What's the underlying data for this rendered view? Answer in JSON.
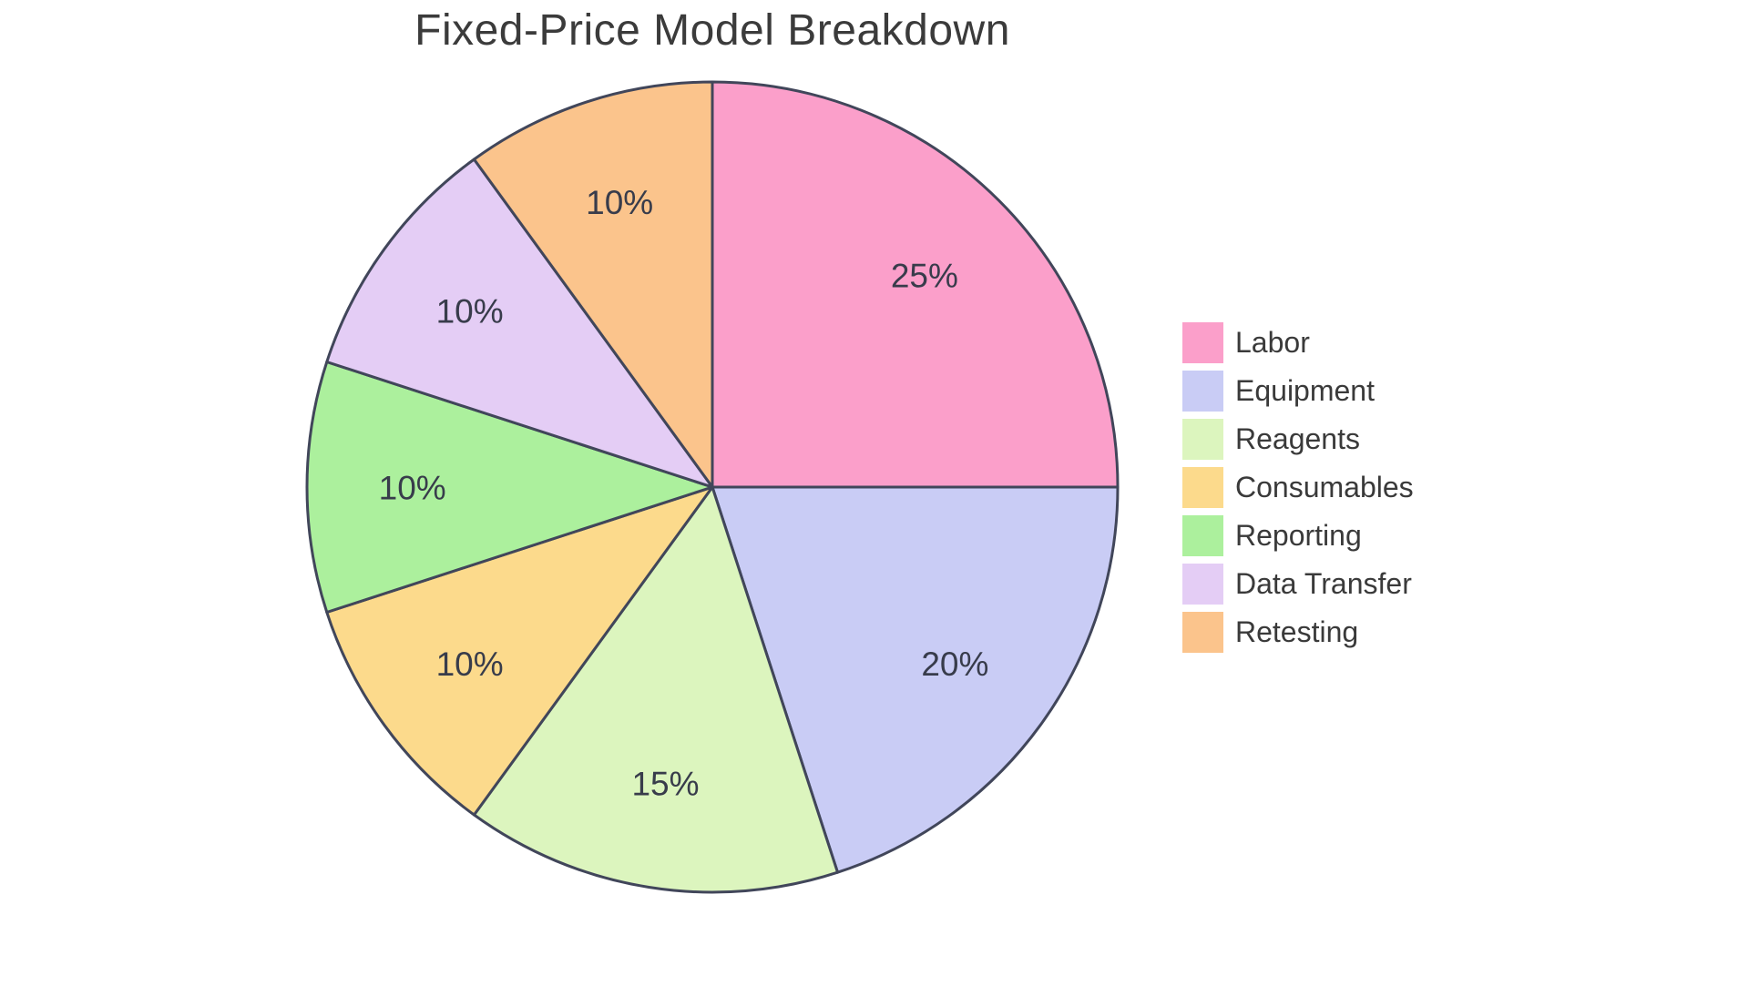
{
  "page": {
    "background_color": "#ffffff"
  },
  "chart_data": {
    "type": "pie",
    "title": "Fixed-Price Model Breakdown",
    "categories": [
      "Labor",
      "Equipment",
      "Reagents",
      "Consumables",
      "Reporting",
      "Data Transfer",
      "Retesting"
    ],
    "values": [
      25,
      20,
      15,
      10,
      10,
      10,
      10
    ],
    "slice_labels": [
      "25%",
      "20%",
      "15%",
      "10%",
      "10%",
      "10%",
      "10%"
    ],
    "colors": [
      "#FB9FCA",
      "#C9CCF5",
      "#DCF5BE",
      "#FCDA8C",
      "#ACF09D",
      "#E4CDF5",
      "#FBC48C"
    ],
    "start_angle": "top",
    "direction": "clockwise",
    "legend_position": "right",
    "slice_border_color": "#41465A",
    "percent_label_color": "#383C4B",
    "title_color": "#3b3b3b",
    "legend_text_color": "#3a3a3a"
  }
}
